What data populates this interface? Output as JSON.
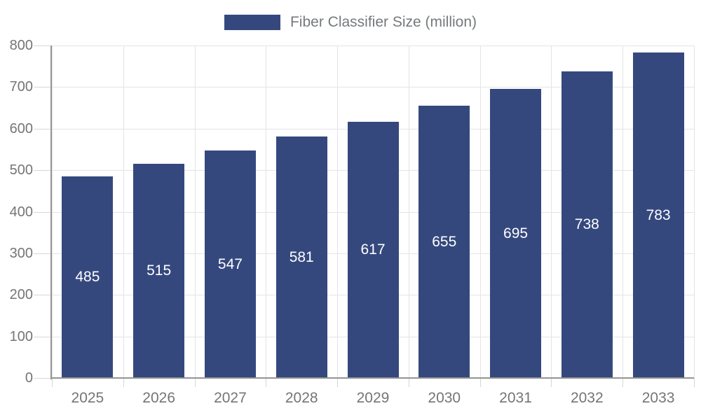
{
  "legend": {
    "label": "Fiber Classifier Size (million)"
  },
  "chart_data": {
    "type": "bar",
    "title": "Fiber Classifier Size (million)",
    "categories": [
      "2025",
      "2026",
      "2027",
      "2028",
      "2029",
      "2030",
      "2031",
      "2032",
      "2033"
    ],
    "values": [
      485,
      515,
      547,
      581,
      617,
      655,
      695,
      738,
      783
    ],
    "xlabel": "",
    "ylabel": "",
    "ylim": [
      0,
      800
    ],
    "yticks": [
      0,
      100,
      200,
      300,
      400,
      500,
      600,
      700,
      800
    ],
    "grid": true,
    "legend_position": "top-center",
    "colors": {
      "bar": "#35487e",
      "value_label": "#ffffff",
      "axis_text": "#757575",
      "gridline": "#e4e4e4",
      "spine": "#949494"
    }
  }
}
